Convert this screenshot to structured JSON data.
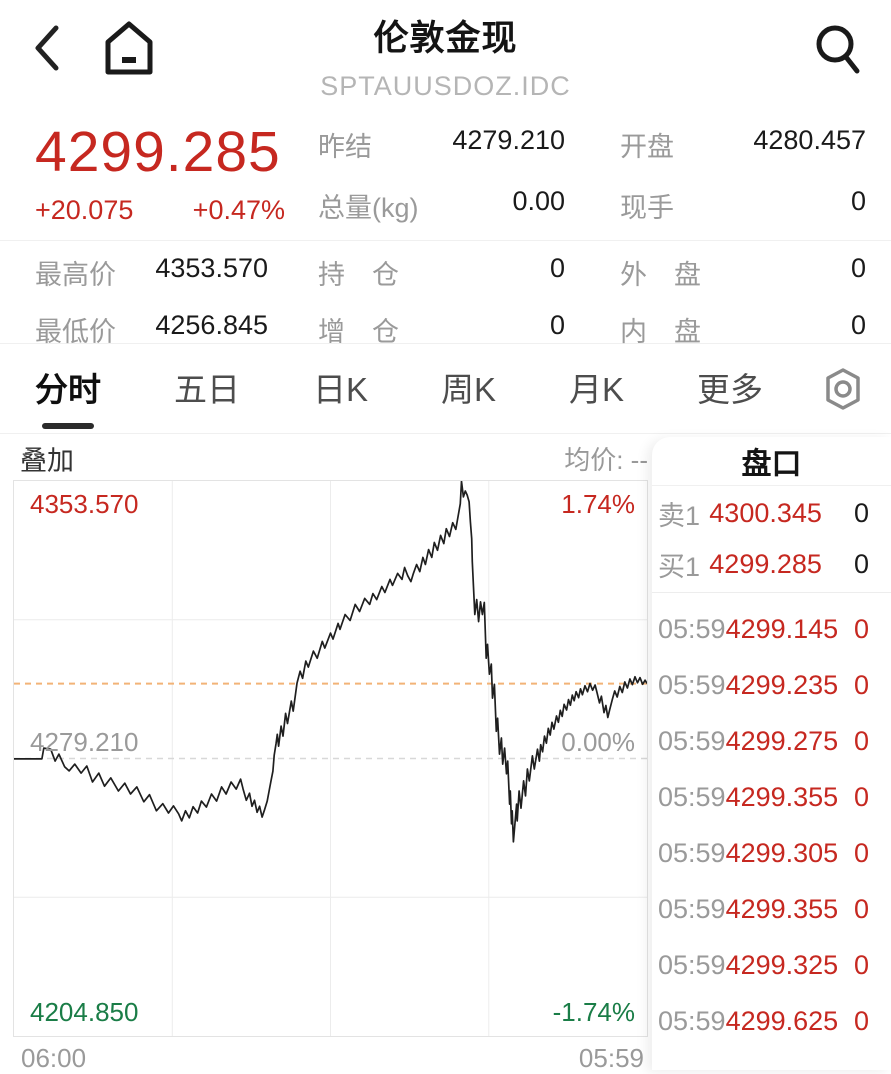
{
  "header": {
    "title": "伦敦金现",
    "subtitle": "SPTAUUSDOZ.IDC",
    "icons": {
      "back": "back-icon",
      "home": "home-icon",
      "search": "search-icon"
    }
  },
  "quote": {
    "last": "4299.285",
    "change": "+20.075",
    "change_pct": "+0.47%",
    "grid": [
      [
        {
          "label": "昨结",
          "value": "4279.210"
        },
        {
          "label": "开盘",
          "value": "4280.457"
        }
      ],
      [
        {
          "label": "总量(kg)",
          "value": "0.00"
        },
        {
          "label": "现手",
          "value": "0"
        }
      ]
    ]
  },
  "stats": {
    "rows": [
      [
        {
          "label": "最高价",
          "value": "4353.570"
        },
        {
          "label": "持　仓",
          "value": "0"
        },
        {
          "label": "外　盘",
          "value": "0"
        }
      ],
      [
        {
          "label": "最低价",
          "value": "4256.845"
        },
        {
          "label": "增　仓",
          "value": "0"
        },
        {
          "label": "内　盘",
          "value": "0"
        }
      ]
    ]
  },
  "tabs": {
    "items": [
      "分时",
      "五日",
      "日K",
      "周K",
      "月K",
      "更多"
    ],
    "active_index": 0
  },
  "subbar": {
    "overlay_label": "叠加",
    "avg_label": "均价:",
    "avg_value": "--"
  },
  "order_book": {
    "title": "盘口",
    "levels": [
      {
        "label": "卖1",
        "price": "4300.345",
        "qty": "0"
      },
      {
        "label": "买1",
        "price": "4299.285",
        "qty": "0"
      }
    ],
    "ticks": [
      {
        "time": "05:59",
        "price": "4299.145",
        "qty": "0"
      },
      {
        "time": "05:59",
        "price": "4299.235",
        "qty": "0"
      },
      {
        "time": "05:59",
        "price": "4299.275",
        "qty": "0"
      },
      {
        "time": "05:59",
        "price": "4299.355",
        "qty": "0"
      },
      {
        "time": "05:59",
        "price": "4299.305",
        "qty": "0"
      },
      {
        "time": "05:59",
        "price": "4299.355",
        "qty": "0"
      },
      {
        "time": "05:59",
        "price": "4299.325",
        "qty": "0"
      },
      {
        "time": "05:59",
        "price": "4299.625",
        "qty": "0"
      }
    ]
  },
  "chart_data": {
    "type": "line",
    "title": "伦敦金现 分时走势",
    "x_labels": [
      "06:00",
      "05:59"
    ],
    "ylim": [
      4204.85,
      4353.57
    ],
    "levels": {
      "prev_close": 4279.21,
      "last": 4299.285
    },
    "labels": {
      "top_left": "4353.570",
      "top_right": "1.74%",
      "mid_left": "4279.210",
      "mid_right": "0.00%",
      "bottom_left": "4204.850",
      "bottom_right": "-1.74%"
    },
    "colors": {
      "line": "#1f1f1f",
      "grid": "#ececec",
      "prev_close_dash": "#d8d8d8",
      "last_dash": "#f2b377",
      "up_red": "#c62820",
      "down_green": "#1a7d47"
    },
    "grid": {
      "v_fracs": [
        0.25,
        0.5,
        0.75
      ],
      "h_fracs": [
        0.25,
        0.75
      ]
    },
    "series": [
      [
        0,
        4279.1
      ],
      [
        0.044,
        4279.1
      ],
      [
        0.047,
        4282
      ],
      [
        0.058,
        4281.7
      ],
      [
        0.065,
        4278.5
      ],
      [
        0.071,
        4280.4
      ],
      [
        0.08,
        4277
      ],
      [
        0.087,
        4275.9
      ],
      [
        0.096,
        4277.7
      ],
      [
        0.106,
        4275.3
      ],
      [
        0.115,
        4277.2
      ],
      [
        0.124,
        4272.9
      ],
      [
        0.134,
        4275.3
      ],
      [
        0.143,
        4271.8
      ],
      [
        0.153,
        4274
      ],
      [
        0.165,
        4270.5
      ],
      [
        0.175,
        4272.6
      ],
      [
        0.184,
        4269.7
      ],
      [
        0.194,
        4271.6
      ],
      [
        0.205,
        4267.6
      ],
      [
        0.214,
        4269.5
      ],
      [
        0.225,
        4265.2
      ],
      [
        0.235,
        4267.1
      ],
      [
        0.244,
        4264.6
      ],
      [
        0.252,
        4266.5
      ],
      [
        0.26,
        4264.4
      ],
      [
        0.265,
        4262.5
      ],
      [
        0.271,
        4265.2
      ],
      [
        0.277,
        4263.3
      ],
      [
        0.283,
        4266.3
      ],
      [
        0.29,
        4264.6
      ],
      [
        0.296,
        4267.8
      ],
      [
        0.304,
        4266.2
      ],
      [
        0.312,
        4269.7
      ],
      [
        0.32,
        4267.8
      ],
      [
        0.328,
        4271.6
      ],
      [
        0.335,
        4269.7
      ],
      [
        0.343,
        4272.9
      ],
      [
        0.351,
        4271
      ],
      [
        0.358,
        4273.7
      ],
      [
        0.362,
        4271
      ],
      [
        0.367,
        4268
      ],
      [
        0.372,
        4269.9
      ],
      [
        0.376,
        4266.4
      ],
      [
        0.38,
        4268
      ],
      [
        0.384,
        4264.8
      ],
      [
        0.388,
        4266.4
      ],
      [
        0.392,
        4263.5
      ],
      [
        0.396,
        4265.6
      ],
      [
        0.4,
        4267.8
      ],
      [
        0.403,
        4270.5
      ],
      [
        0.406,
        4273.2
      ],
      [
        0.409,
        4275.8
      ],
      [
        0.411,
        4280.1
      ],
      [
        0.414,
        4283.3
      ],
      [
        0.416,
        4285.7
      ],
      [
        0.418,
        4282.5
      ],
      [
        0.422,
        4287.9
      ],
      [
        0.425,
        4285.2
      ],
      [
        0.429,
        4291.3
      ],
      [
        0.432,
        4288.6
      ],
      [
        0.438,
        4294.6
      ],
      [
        0.441,
        4291.9
      ],
      [
        0.447,
        4299.4
      ],
      [
        0.452,
        4302.6
      ],
      [
        0.456,
        4300.7
      ],
      [
        0.461,
        4305.3
      ],
      [
        0.465,
        4303.7
      ],
      [
        0.473,
        4308
      ],
      [
        0.479,
        4306.1
      ],
      [
        0.487,
        4310.6
      ],
      [
        0.491,
        4308.8
      ],
      [
        0.5,
        4312.8
      ],
      [
        0.504,
        4311.2
      ],
      [
        0.512,
        4315.4
      ],
      [
        0.515,
        4313.8
      ],
      [
        0.523,
        4317.8
      ],
      [
        0.531,
        4316.2
      ],
      [
        0.539,
        4320.5
      ],
      [
        0.546,
        4318.6
      ],
      [
        0.554,
        4322.1
      ],
      [
        0.562,
        4320.5
      ],
      [
        0.567,
        4323.4
      ],
      [
        0.573,
        4321.8
      ],
      [
        0.581,
        4325.3
      ],
      [
        0.586,
        4323.7
      ],
      [
        0.594,
        4327.2
      ],
      [
        0.598,
        4325.6
      ],
      [
        0.606,
        4328.8
      ],
      [
        0.613,
        4327.2
      ],
      [
        0.617,
        4330.4
      ],
      [
        0.622,
        4328.2
      ],
      [
        0.627,
        4326.6
      ],
      [
        0.631,
        4328.8
      ],
      [
        0.636,
        4331.2
      ],
      [
        0.641,
        4329.3
      ],
      [
        0.646,
        4333.1
      ],
      [
        0.65,
        4331.2
      ],
      [
        0.655,
        4335.2
      ],
      [
        0.66,
        4333.1
      ],
      [
        0.664,
        4337.1
      ],
      [
        0.669,
        4335
      ],
      [
        0.674,
        4339
      ],
      [
        0.679,
        4336.8
      ],
      [
        0.683,
        4340.8
      ],
      [
        0.688,
        4338.7
      ],
      [
        0.693,
        4342.4
      ],
      [
        0.698,
        4340.6
      ],
      [
        0.702,
        4344.6
      ],
      [
        0.705,
        4347.5
      ],
      [
        0.707,
        4353.5
      ],
      [
        0.71,
        4349.3
      ],
      [
        0.713,
        4350.9
      ],
      [
        0.716,
        4349.8
      ],
      [
        0.719,
        4348
      ],
      [
        0.721,
        4342.6
      ],
      [
        0.723,
        4338.1
      ],
      [
        0.724,
        4331.9
      ],
      [
        0.728,
        4317.8
      ],
      [
        0.731,
        4321.8
      ],
      [
        0.734,
        4315.9
      ],
      [
        0.737,
        4321.2
      ],
      [
        0.74,
        4317.8
      ],
      [
        0.743,
        4321
      ],
      [
        0.746,
        4306.1
      ],
      [
        0.748,
        4309.8
      ],
      [
        0.751,
        4301.8
      ],
      [
        0.754,
        4304.5
      ],
      [
        0.756,
        4295.4
      ],
      [
        0.759,
        4299.1
      ],
      [
        0.762,
        4286.5
      ],
      [
        0.764,
        4290
      ],
      [
        0.767,
        4280.4
      ],
      [
        0.77,
        4284.7
      ],
      [
        0.772,
        4277.7
      ],
      [
        0.775,
        4282
      ],
      [
        0.778,
        4275.1
      ],
      [
        0.78,
        4278.5
      ],
      [
        0.783,
        4267
      ],
      [
        0.784,
        4270.5
      ],
      [
        0.786,
        4261.7
      ],
      [
        0.787,
        4265.2
      ],
      [
        0.789,
        4256.9
      ],
      [
        0.794,
        4267
      ],
      [
        0.795,
        4262.5
      ],
      [
        0.798,
        4270.5
      ],
      [
        0.801,
        4265.9
      ],
      [
        0.805,
        4273.2
      ],
      [
        0.808,
        4269.2
      ],
      [
        0.811,
        4276.4
      ],
      [
        0.814,
        4273.2
      ],
      [
        0.819,
        4279.9
      ],
      [
        0.822,
        4276.4
      ],
      [
        0.827,
        4281.7
      ],
      [
        0.83,
        4278.5
      ],
      [
        0.832,
        4282.9
      ],
      [
        0.835,
        4281
      ],
      [
        0.838,
        4285.2
      ],
      [
        0.841,
        4283.3
      ],
      [
        0.844,
        4287.3
      ],
      [
        0.847,
        4285.5
      ],
      [
        0.85,
        4288.9
      ],
      [
        0.853,
        4287.1
      ],
      [
        0.857,
        4290.6
      ],
      [
        0.86,
        4288.9
      ],
      [
        0.863,
        4292.1
      ],
      [
        0.866,
        4290.5
      ],
      [
        0.869,
        4293.7
      ],
      [
        0.873,
        4292.2
      ],
      [
        0.876,
        4295
      ],
      [
        0.879,
        4293.5
      ],
      [
        0.882,
        4296.2
      ],
      [
        0.885,
        4294.7
      ],
      [
        0.888,
        4297.1
      ],
      [
        0.892,
        4295.5
      ],
      [
        0.895,
        4297.9
      ],
      [
        0.898,
        4296.3
      ],
      [
        0.902,
        4298.7
      ],
      [
        0.906,
        4297.1
      ],
      [
        0.91,
        4299.3
      ],
      [
        0.914,
        4297.5
      ],
      [
        0.918,
        4298.9
      ],
      [
        0.921,
        4296.9
      ],
      [
        0.925,
        4294.1
      ],
      [
        0.928,
        4295.9
      ],
      [
        0.932,
        4291.5
      ],
      [
        0.935,
        4293.4
      ],
      [
        0.938,
        4290.2
      ],
      [
        0.941,
        4292.3
      ],
      [
        0.945,
        4294.9
      ],
      [
        0.949,
        4297.3
      ],
      [
        0.953,
        4295.7
      ],
      [
        0.957,
        4298.5
      ],
      [
        0.961,
        4296.9
      ],
      [
        0.965,
        4299.7
      ],
      [
        0.969,
        4298.1
      ],
      [
        0.973,
        4300.5
      ],
      [
        0.977,
        4299
      ],
      [
        0.981,
        4301.1
      ],
      [
        0.985,
        4299.5
      ],
      [
        0.989,
        4300.9
      ],
      [
        0.993,
        4299.1
      ],
      [
        0.997,
        4300.2
      ],
      [
        1,
        4299.3
      ]
    ]
  }
}
